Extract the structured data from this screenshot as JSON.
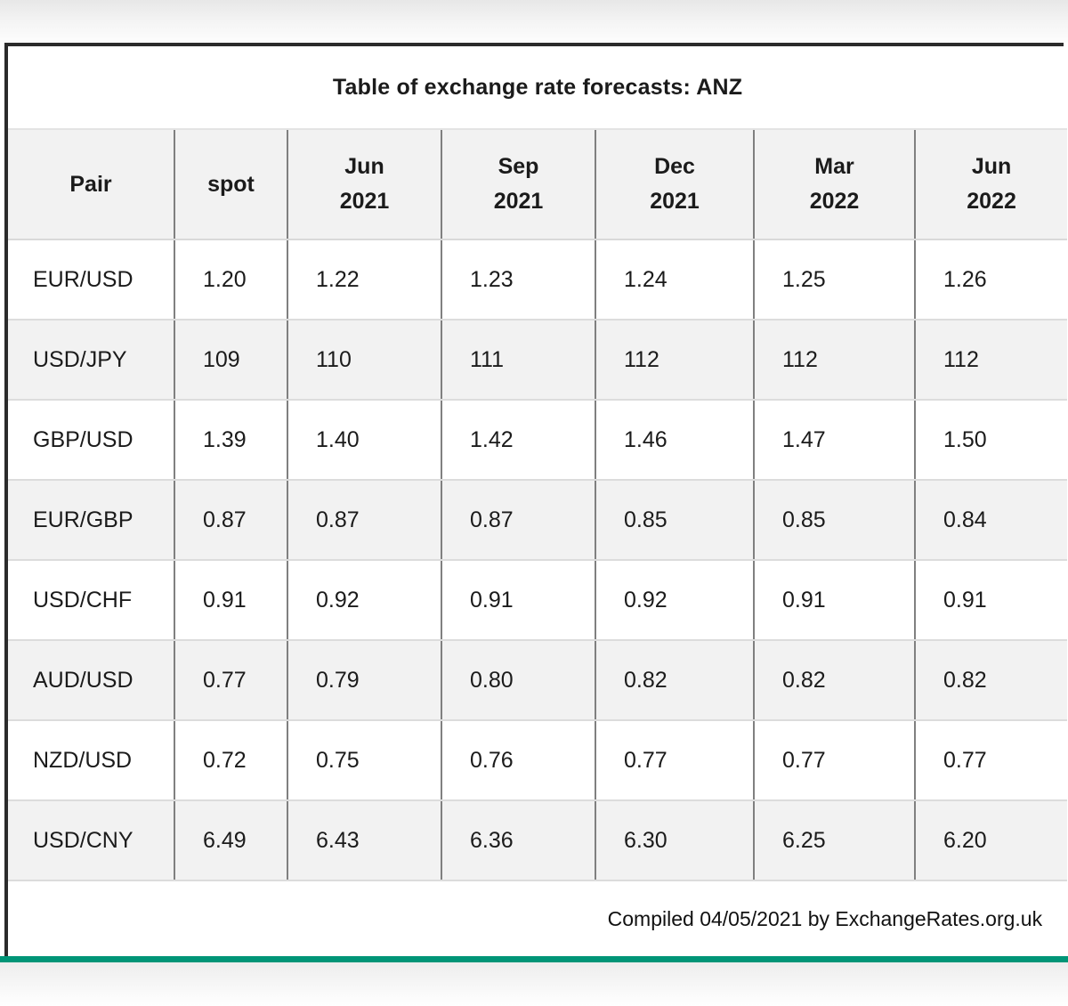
{
  "colors": {
    "accent_teal": "#009577",
    "frame_dark": "#2b2b2b",
    "row_stripe": "#f2f2f2",
    "column_divider": "#808080"
  },
  "footer": {
    "compiled_note": "Compiled 04/05/2021 by ExchangeRates.org.uk"
  },
  "chart_data": {
    "type": "table",
    "title": "Table of exchange rate forecasts: ANZ",
    "columns": [
      "Pair",
      "spot",
      "Jun\n2021",
      "Sep\n2021",
      "Dec\n2021",
      "Mar\n2022",
      "Jun\n2022"
    ],
    "rows": [
      [
        "EUR/USD",
        "1.20",
        "1.22",
        "1.23",
        "1.24",
        "1.25",
        "1.26"
      ],
      [
        "USD/JPY",
        "109",
        "110",
        "111",
        "112",
        "112",
        "112"
      ],
      [
        "GBP/USD",
        "1.39",
        "1.40",
        "1.42",
        "1.46",
        "1.47",
        "1.50"
      ],
      [
        "EUR/GBP",
        "0.87",
        "0.87",
        "0.87",
        "0.85",
        "0.85",
        "0.84"
      ],
      [
        "USD/CHF",
        "0.91",
        "0.92",
        "0.91",
        "0.92",
        "0.91",
        "0.91"
      ],
      [
        "AUD/USD",
        "0.77",
        "0.79",
        "0.80",
        "0.82",
        "0.82",
        "0.82"
      ],
      [
        "NZD/USD",
        "0.72",
        "0.75",
        "0.76",
        "0.77",
        "0.77",
        "0.77"
      ],
      [
        "USD/CNY",
        "6.49",
        "6.43",
        "6.36",
        "6.30",
        "6.25",
        "6.20"
      ]
    ]
  }
}
